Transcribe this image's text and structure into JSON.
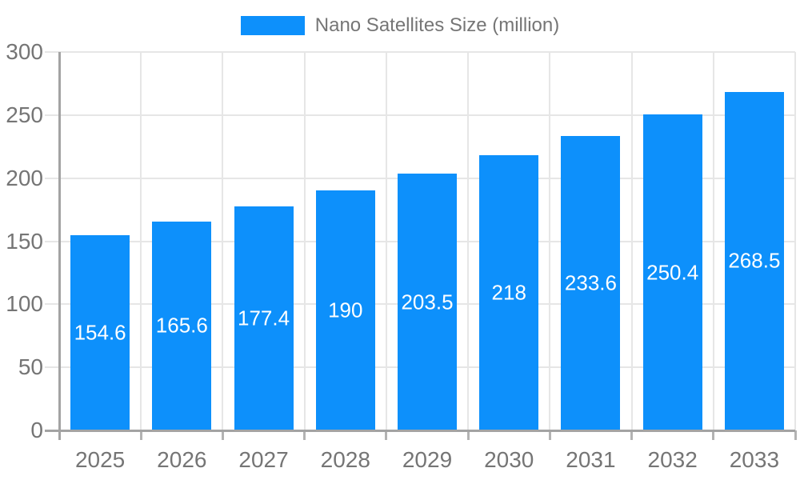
{
  "chart_data": {
    "type": "bar",
    "title": "Nano Satellites Size (million)",
    "legend": [
      {
        "label": "Nano Satellites Size (million)"
      }
    ],
    "legend_position": "top",
    "categories": [
      "2025",
      "2026",
      "2027",
      "2028",
      "2029",
      "2030",
      "2031",
      "2032",
      "2033"
    ],
    "series": [
      {
        "name": "Nano Satellites Size (million)",
        "values": [
          154.6,
          165.6,
          177.4,
          190,
          203.5,
          218,
          233.6,
          250.4,
          268.5
        ]
      }
    ],
    "value_labels": [
      "154.6",
      "165.6",
      "177.4",
      "190",
      "203.5",
      "218",
      "233.6",
      "250.4",
      "268.5"
    ],
    "xlabel": "",
    "ylabel": "",
    "ylim": [
      0,
      300
    ],
    "y_ticks": [
      0,
      50,
      100,
      150,
      200,
      250,
      300
    ],
    "grid": true,
    "colors": {
      "bar": "#0d90fb",
      "axis_text": "#757575",
      "grid_line": "#e6e6e6",
      "axis_line": "#a3a3a3",
      "tick_mark": "#b3b3b3",
      "value_label": "#ffffff",
      "background": "#ffffff"
    }
  }
}
